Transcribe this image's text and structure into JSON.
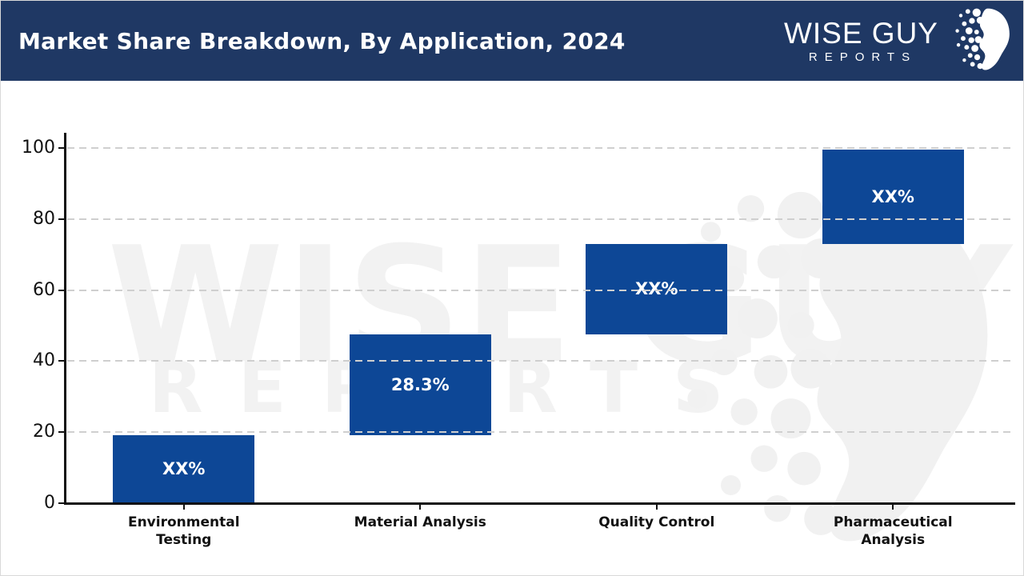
{
  "header": {
    "title": "Market Share Breakdown, By Application, 2024",
    "background_color": "#1f3864",
    "logo": {
      "brand": "WISE GUY",
      "sub": "REPORTS"
    }
  },
  "watermark": {
    "line1": "WISE GUY",
    "line2": "REPORTS"
  },
  "colors": {
    "bar": "#0d4796",
    "header_navy": "#1f3864",
    "watermark_gray": "#f2f2f2",
    "gridline_gray": "#cfcfcf",
    "bar_label": "#ffffff"
  },
  "chart_data": {
    "type": "bar",
    "variant": "waterfall",
    "title": "Market Share Breakdown, By Application, 2024",
    "categories": [
      "Environmental Testing",
      "Material Analysis",
      "Quality Control",
      "Pharmaceutical Analysis"
    ],
    "category_label_lines": [
      [
        "Environmental",
        "Testing"
      ],
      [
        "Material Analysis"
      ],
      [
        "Quality Control"
      ],
      [
        "Pharmaceutical",
        "Analysis"
      ]
    ],
    "segments": [
      {
        "category": "Environmental Testing",
        "start": 0,
        "end": 19.2,
        "value": 19.2,
        "label": "XX%"
      },
      {
        "category": "Material Analysis",
        "start": 19.2,
        "end": 47.5,
        "value": 28.3,
        "label": "28.3%"
      },
      {
        "category": "Quality Control",
        "start": 47.5,
        "end": 73.0,
        "value": 25.5,
        "label": "XX%"
      },
      {
        "category": "Pharmaceutical Analysis",
        "start": 73.0,
        "end": 99.5,
        "value": 26.5,
        "label": "XX%"
      }
    ],
    "xlabel": "",
    "ylabel": "",
    "ylim": [
      0,
      104
    ],
    "yticks": [
      0,
      20,
      40,
      60,
      80,
      100
    ],
    "grid": {
      "axis": "y",
      "style": "dashed",
      "color": "#cfcfcf",
      "above_bars": true
    },
    "legend": "none",
    "bar_color": "#0d4796",
    "bar_label_color": "#ffffff"
  }
}
